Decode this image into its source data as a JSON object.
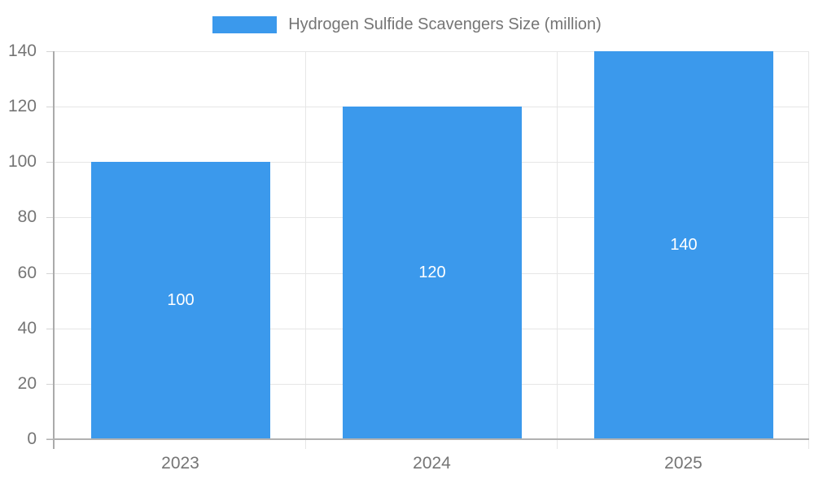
{
  "legend": {
    "label": "Hydrogen Sulfide Scavengers Size (million)"
  },
  "chart_data": {
    "type": "bar",
    "title": "Hydrogen Sulfide Scavengers Size (million)",
    "categories": [
      "2023",
      "2024",
      "2025"
    ],
    "series": [
      {
        "name": "Hydrogen Sulfide Scavengers Size (million)",
        "values": [
          100,
          120,
          140
        ],
        "data_labels": [
          "100",
          "120",
          "140"
        ]
      }
    ],
    "xlabel": "",
    "ylabel": "",
    "ylim": [
      0,
      140
    ],
    "yticks": [
      0,
      20,
      40,
      60,
      80,
      100,
      120,
      140
    ],
    "grid": true,
    "legend_position": "top-center",
    "bar_label_position": "inside-center"
  },
  "colors": {
    "bar": "#3b99ec",
    "legend_text": "#757575",
    "tick_text": "#757575",
    "gridline": "#e6e6e6",
    "axis_line": "#ababab",
    "value_label": "#ffffff"
  }
}
